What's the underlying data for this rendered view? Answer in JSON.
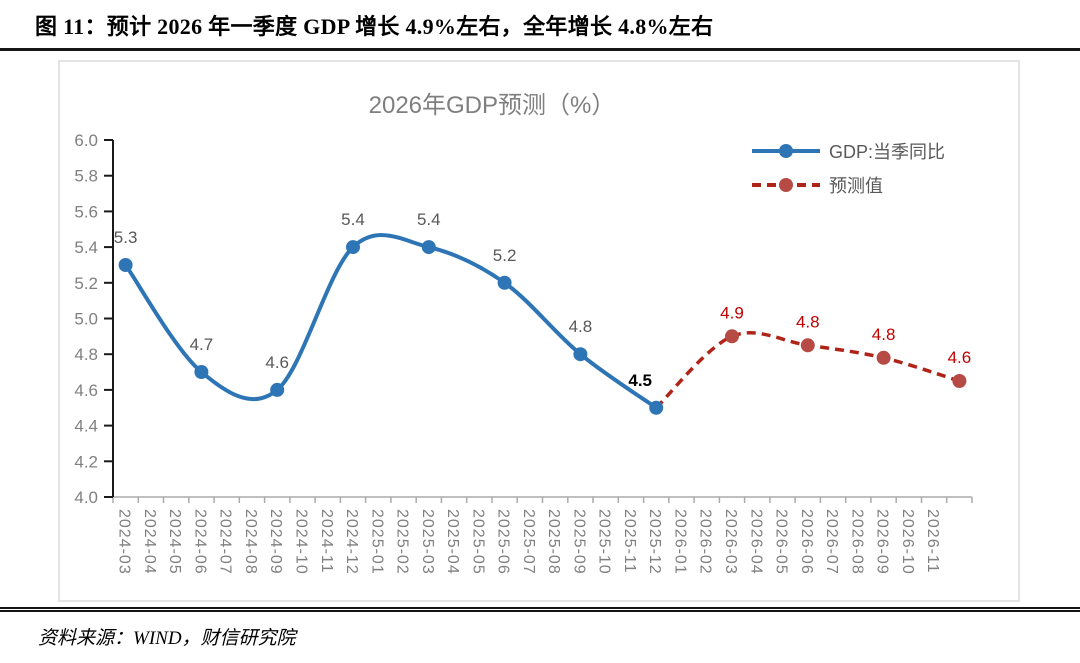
{
  "page": {
    "figure_title": "图 11：预计 2026 年一季度 GDP 增长 4.9%左右，全年增长 4.8%左右",
    "source_note": "资料来源：WIND，财信研究院"
  },
  "chart_data": {
    "type": "line",
    "title": "2026年GDP预测（%）",
    "ylim": [
      4.0,
      6.0
    ],
    "y_tick_labels": [
      "6.0",
      "5.8",
      "5.6",
      "5.4",
      "5.2",
      "5.0",
      "4.8",
      "4.6",
      "4.4",
      "4.2",
      "4.0"
    ],
    "x_categories": [
      "2024-03",
      "2024-04",
      "2024-05",
      "2024-06",
      "2024-07",
      "2024-08",
      "2024-09",
      "2024-10",
      "2024-11",
      "2024-12",
      "2025-01",
      "2025-02",
      "2025-03",
      "2025-04",
      "2025-05",
      "2025-06",
      "2025-07",
      "2025-08",
      "2025-09",
      "2025-10",
      "2025-11",
      "2025-12",
      "2026-01",
      "2026-02",
      "2026-03",
      "2026-04",
      "2026-05",
      "2026-06",
      "2026-07",
      "2026-08",
      "2026-09",
      "2026-10",
      "2026-11"
    ],
    "x_extra_slots": 1,
    "grid": "off",
    "legend_position": "top-right",
    "series": [
      {
        "name": "GDP:当季同比",
        "style": "solid",
        "color": "#2E75B6",
        "marker_color": "#2E75B6",
        "label_color": "#595959",
        "points": [
          {
            "month": "2024-03",
            "value": 5.3,
            "label": "5.3"
          },
          {
            "month": "2024-06",
            "value": 4.7,
            "label": "4.7"
          },
          {
            "month": "2024-09",
            "value": 4.6,
            "label": "4.6"
          },
          {
            "month": "2024-12",
            "value": 5.4,
            "label": "5.4"
          },
          {
            "month": "2025-03",
            "value": 5.4,
            "label": "5.4"
          },
          {
            "month": "2025-06",
            "value": 5.2,
            "label": "5.2"
          },
          {
            "month": "2025-09",
            "value": 4.8,
            "label": "4.8"
          },
          {
            "month": "2025-12",
            "value": 4.5,
            "label": "4.5",
            "label_color": "#000000",
            "label_bold": true,
            "label_dx": -16
          }
        ]
      },
      {
        "name": "预测值",
        "style": "dashed",
        "color": "#B02418",
        "marker_color": "#B54B44",
        "label_color": "#C00000",
        "points": [
          {
            "month": "2025-12",
            "value": 4.5,
            "label": "",
            "marker": false
          },
          {
            "month": "2026-03",
            "value": 4.9,
            "label": "4.9"
          },
          {
            "month": "2026-06",
            "value": 4.85,
            "label": "4.8"
          },
          {
            "month": "2026-09",
            "value": 4.78,
            "label": "4.8"
          },
          {
            "month": "2026-12",
            "value": 4.65,
            "label": "4.6"
          }
        ]
      }
    ]
  }
}
